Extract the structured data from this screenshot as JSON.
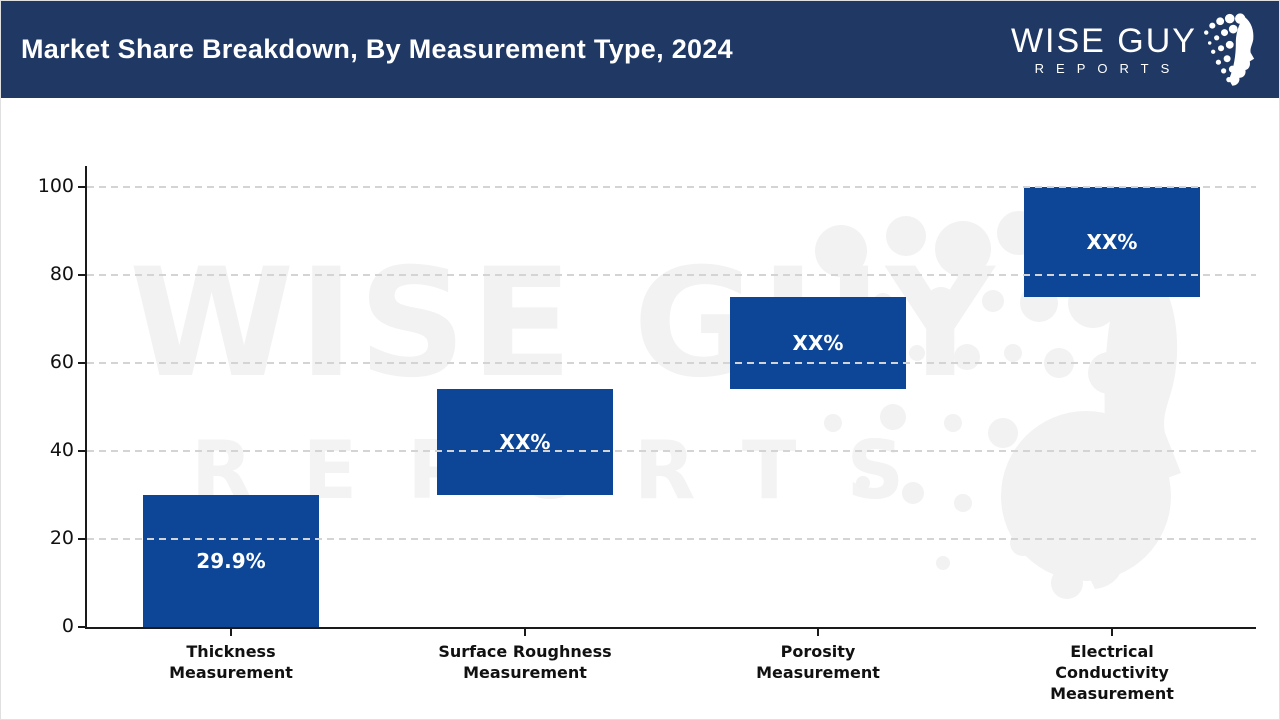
{
  "header": {
    "title": "Market Share Breakdown, By Measurement Type, 2024",
    "bg_color": "#1f3864",
    "logo": {
      "line1": "WISE GUY",
      "line2": "REPORTS"
    }
  },
  "watermark": {
    "line1": "WISE GUY",
    "line2": "REPORTS"
  },
  "chart_data": {
    "type": "bar",
    "subtype": "waterfall",
    "title": "Market Share Breakdown, By Measurement Type, 2024",
    "categories": [
      "Thickness Measurement",
      "Surface Roughness Measurement",
      "Porosity Measurement",
      "Electrical Conductivity Measurement"
    ],
    "category_lines": [
      [
        "Thickness",
        "Measurement"
      ],
      [
        "Surface Roughness",
        "Measurement"
      ],
      [
        "Porosity",
        "Measurement"
      ],
      [
        "Electrical",
        "Conductivity",
        "Measurement"
      ]
    ],
    "segments": [
      {
        "category": "Thickness Measurement",
        "start": 0,
        "end": 29.9,
        "label": "29.9%"
      },
      {
        "category": "Surface Roughness Measurement",
        "start": 29.9,
        "end": 54,
        "label": "XX%"
      },
      {
        "category": "Porosity Measurement",
        "start": 54,
        "end": 75,
        "label": "XX%"
      },
      {
        "category": "Electrical Conductivity Measurement",
        "start": 75,
        "end": 100,
        "label": "XX%"
      }
    ],
    "ylim": [
      0,
      100
    ],
    "yticks": [
      0,
      20,
      40,
      60,
      80,
      100
    ],
    "xlabel": "",
    "ylabel": "",
    "grid": "horizontal-dashed-above-bars",
    "legend": "none",
    "bar_color": "#0d4696",
    "bar_label_color": "#ffffff",
    "axis_color": "#1a1a1a",
    "grid_color": "#d4d4d4"
  }
}
